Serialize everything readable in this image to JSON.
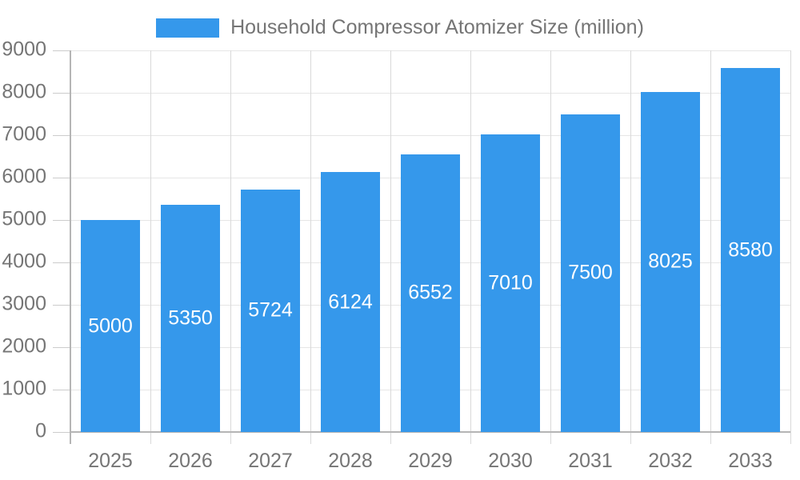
{
  "chart_data": {
    "type": "bar",
    "title": "Household Compressor Atomizer Size (million)",
    "legend": "Household Compressor Atomizer Size (million)",
    "legend_position": "top-center",
    "categories": [
      "2025",
      "2026",
      "2027",
      "2028",
      "2029",
      "2030",
      "2031",
      "2032",
      "2033"
    ],
    "values": [
      5000,
      5350,
      5724,
      6124,
      6552,
      7010,
      7500,
      8025,
      8580
    ],
    "value_labels": [
      "5000",
      "5350",
      "5724",
      "6124",
      "6552",
      "7010",
      "7500",
      "8025",
      "8580"
    ],
    "xlabel": "",
    "ylabel": "",
    "ylim": [
      0,
      9000
    ],
    "ytick_step": 1000,
    "ytick_labels": [
      "0",
      "1000",
      "2000",
      "3000",
      "4000",
      "5000",
      "6000",
      "7000",
      "8000",
      "9000"
    ],
    "grid": true,
    "colors": {
      "bar": "#3598EB",
      "bar_label": "#ffffff",
      "axis_text": "#757575",
      "grid_h": "#e6e6e6",
      "grid_v": "#d9d9d9",
      "axis_line": "#b5b5b5",
      "tick": "#cccccc",
      "background": "#ffffff"
    }
  }
}
